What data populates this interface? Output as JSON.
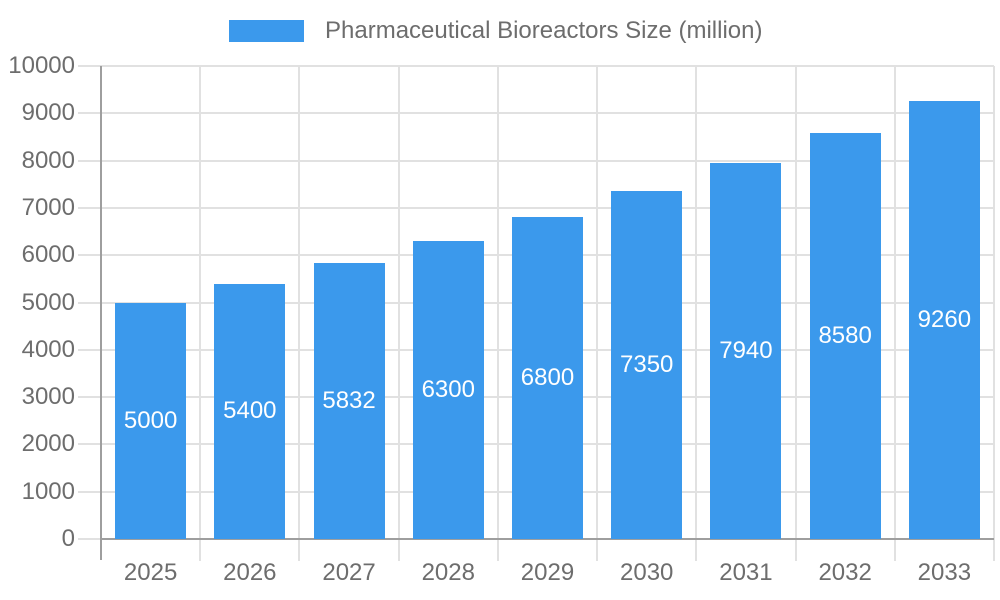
{
  "chart_data": {
    "type": "bar",
    "series_label": "Pharmaceutical Bioreactors Size (million)",
    "categories": [
      "2025",
      "2026",
      "2027",
      "2028",
      "2029",
      "2030",
      "2031",
      "2032",
      "2033"
    ],
    "values": [
      5000,
      5400,
      5832,
      6300,
      6800,
      7350,
      7940,
      8580,
      9260
    ],
    "data_labels": [
      "5000",
      "5400",
      "5832",
      "6300",
      "6800",
      "7350",
      "7940",
      "8580",
      "9260"
    ],
    "y_ticks": [
      0,
      1000,
      2000,
      3000,
      4000,
      5000,
      6000,
      7000,
      8000,
      9000,
      10000
    ],
    "ylim": [
      0,
      10000
    ],
    "grid": true,
    "legend_position": "top",
    "colors": {
      "bar": "#3b99ec",
      "axis": "#9e9e9e",
      "gridline": "#e1e1e1",
      "label": "#6d6d6d",
      "data_label": "#ffffff",
      "background": "#ffffff"
    }
  }
}
